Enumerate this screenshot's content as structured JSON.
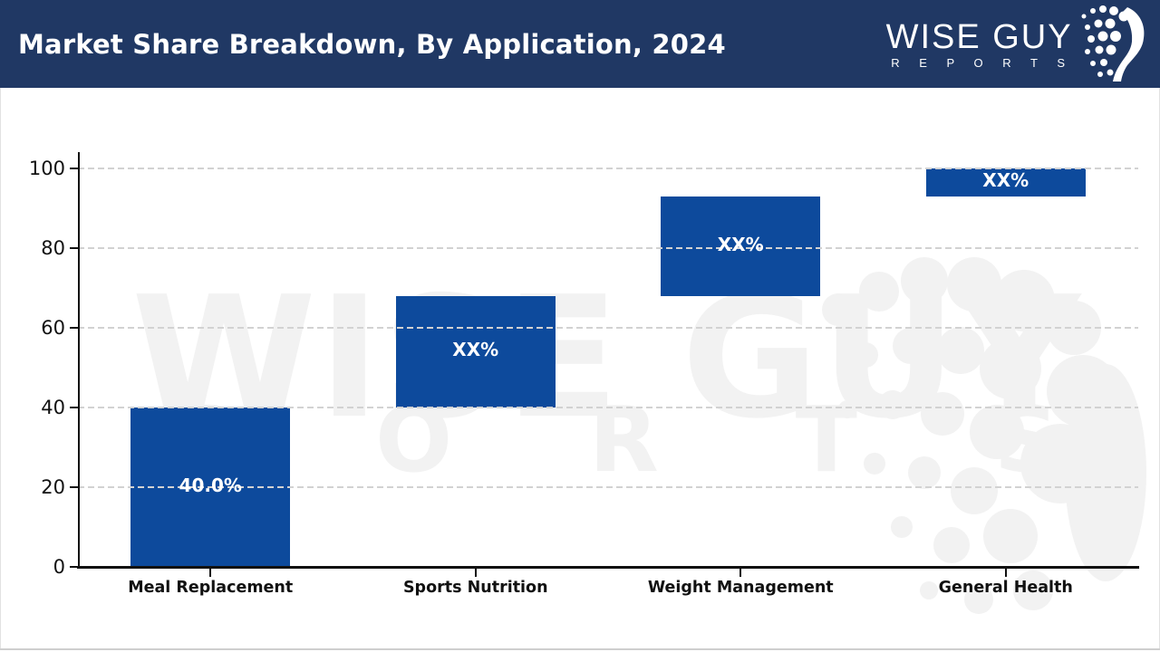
{
  "header": {
    "title": "Market Share Breakdown, By Application, 2024",
    "logo": {
      "line1": "WISE GUY",
      "line2": "R E P O R T S"
    }
  },
  "watermark": {
    "line1": "WISE GUY",
    "line2": "P O R T S"
  },
  "colors": {
    "header_bg": "#203864",
    "bar": "#0d4a9c",
    "bar_label_text": "#ffffff",
    "axis": "#111111",
    "gridline": "#d2d2d2",
    "watermark": "#f2f2f2"
  },
  "chart_data": {
    "type": "bar",
    "subtype": "waterfall",
    "title": "Market Share Breakdown, By Application, 2024",
    "categories": [
      "Meal Replacement",
      "Sports Nutrition",
      "Weight Management",
      "General Health"
    ],
    "segments": [
      {
        "category": "Meal Replacement",
        "start": 0,
        "end": 40,
        "label": "40.0%"
      },
      {
        "category": "Sports Nutrition",
        "start": 40,
        "end": 68,
        "label": "XX%"
      },
      {
        "category": "Weight Management",
        "start": 68,
        "end": 93,
        "label": "XX%"
      },
      {
        "category": "General Health",
        "start": 93,
        "end": 100,
        "label": "XX%"
      }
    ],
    "yticks": [
      0,
      20,
      40,
      60,
      80,
      100
    ],
    "ylim": [
      0,
      104
    ],
    "xlabel": "",
    "ylabel": "",
    "grid": true,
    "legend": false
  }
}
